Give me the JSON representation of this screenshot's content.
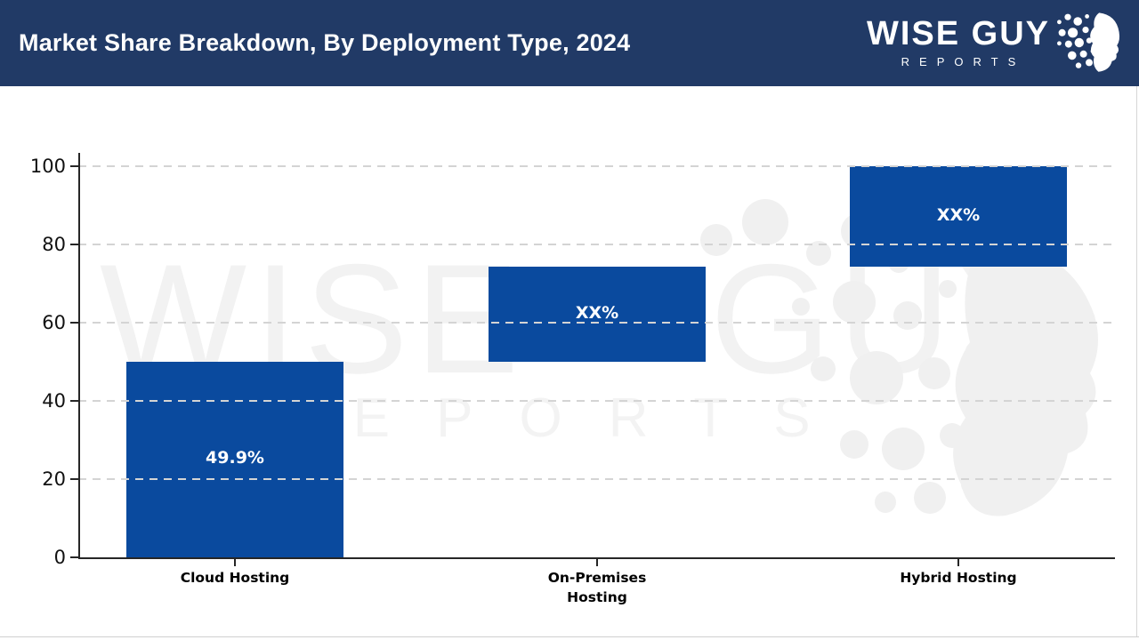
{
  "header": {
    "title": "Market Share Breakdown, By Deployment Type, 2024",
    "logo": {
      "wordmark": "WISE GUY",
      "subtext": "REPORTS"
    }
  },
  "watermark": {
    "wordmark": "WISE GUY",
    "subtext": "REPORTS"
  },
  "chart_data": {
    "type": "bar",
    "subtype": "waterfall (stacked market-share breakdown, floating segments)",
    "title": "Market Share Breakdown, By Deployment Type, 2024",
    "categories": [
      "Cloud Hosting",
      "On-Premises\nHosting",
      "Hybrid Hosting"
    ],
    "segments": [
      {
        "category": "Cloud Hosting",
        "start": 0,
        "end": 49.9,
        "value": 49.9,
        "label": "49.9%"
      },
      {
        "category": "On-Premises Hosting",
        "start": 49.9,
        "end": 74.3,
        "value": 24.4,
        "label": "XX%"
      },
      {
        "category": "Hybrid Hosting",
        "start": 74.3,
        "end": 100,
        "value": 25.7,
        "label": "XX%"
      }
    ],
    "xlabel": "",
    "ylabel": "",
    "ylim": [
      0,
      100
    ],
    "yticks": [
      0,
      20,
      40,
      60,
      80,
      100
    ],
    "grid": "horizontal dashed, drawn over bars",
    "legend": "none",
    "bar_color": "#0A4A9E",
    "bar_label_color": "#FFFFFF",
    "grid_color": "#D4D4D4",
    "header_bg_color": "#213A66"
  }
}
